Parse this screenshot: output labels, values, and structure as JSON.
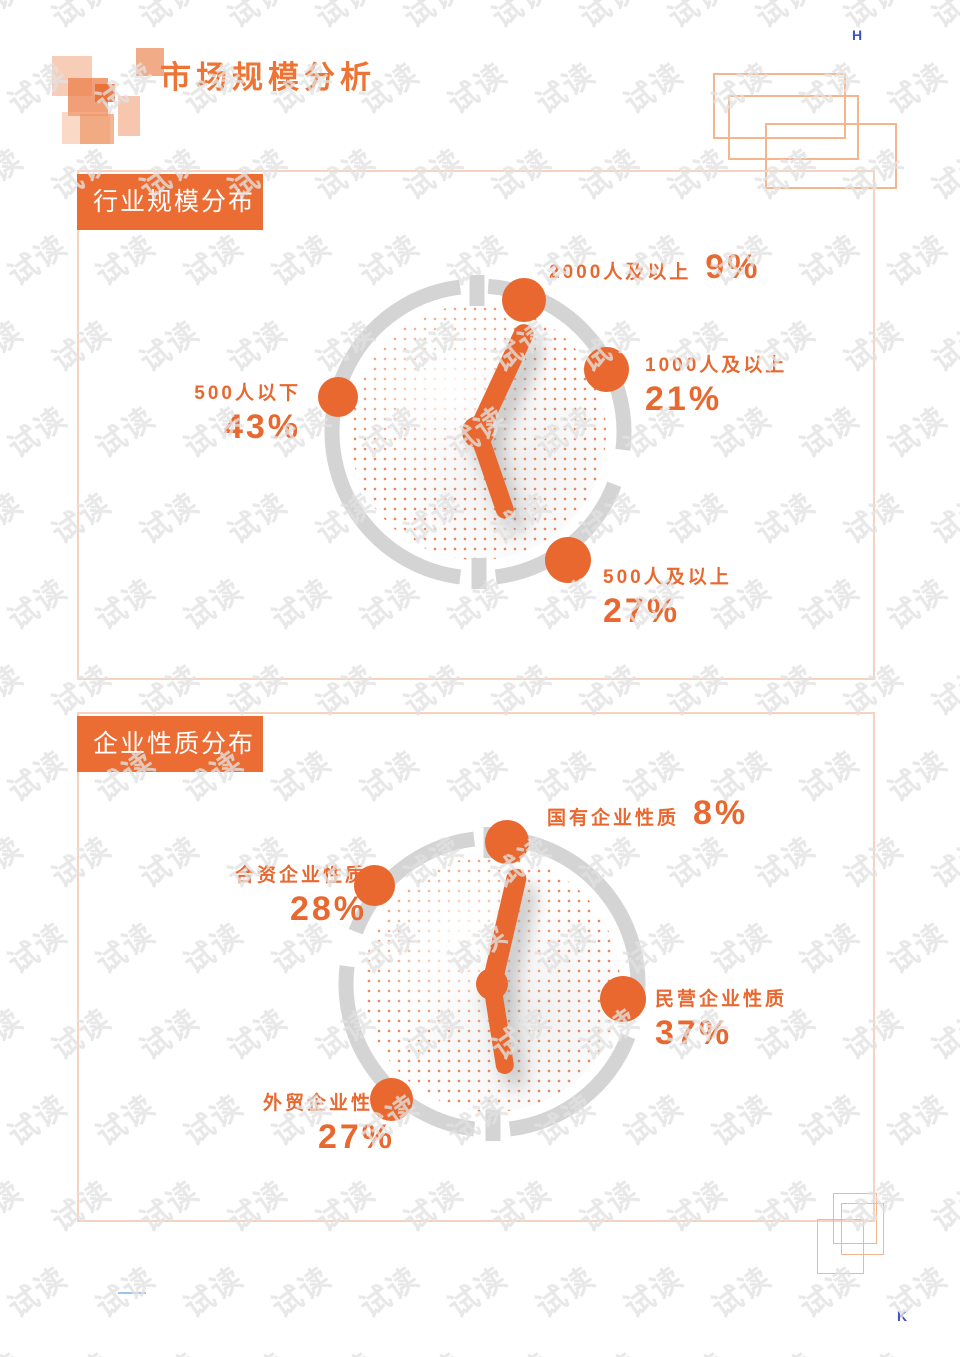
{
  "page": {
    "title": "市场规模分析",
    "watermark": "试读",
    "marker_top": "H",
    "marker_bottom": "K"
  },
  "sections": [
    {
      "header": "行业规模分布",
      "labels": [
        {
          "name": "2000人及以上",
          "value": "9%"
        },
        {
          "name": "1000人及以上",
          "value": "21%"
        },
        {
          "name": "500人以下",
          "value": "43%"
        },
        {
          "name": "500人及以上",
          "value": "27%"
        }
      ]
    },
    {
      "header": "企业性质分布",
      "labels": [
        {
          "name": "国有企业性质",
          "value": "8%"
        },
        {
          "name": "合资企业性质",
          "value": "28%"
        },
        {
          "name": "民营企业性质",
          "value": "37%"
        },
        {
          "name": "外贸企业性质",
          "value": "27%"
        }
      ]
    }
  ],
  "chart_data": [
    {
      "type": "pie",
      "title": "行业规模分布",
      "categories": [
        "2000人及以上",
        "1000人及以上",
        "500人及以上",
        "500人以下"
      ],
      "values": [
        9,
        21,
        27,
        43
      ],
      "unit": "%",
      "legend_position": "around-clock-infographic"
    },
    {
      "type": "pie",
      "title": "企业性质分布",
      "categories": [
        "国有企业性质",
        "合资企业性质",
        "民营企业性质",
        "外贸企业性质"
      ],
      "values": [
        8,
        28,
        37,
        27
      ],
      "unit": "%",
      "legend_position": "around-clock-infographic"
    }
  ],
  "colors": {
    "accent": "#e8682f",
    "header_box": "#eb6d33",
    "ring_gray": "#d4d4d4",
    "panel_border": "#f7d3bf",
    "deco_outline": "#f5b68d",
    "marker_blue": "#3f51c9",
    "watermark_gray": "#e2e2e2"
  }
}
